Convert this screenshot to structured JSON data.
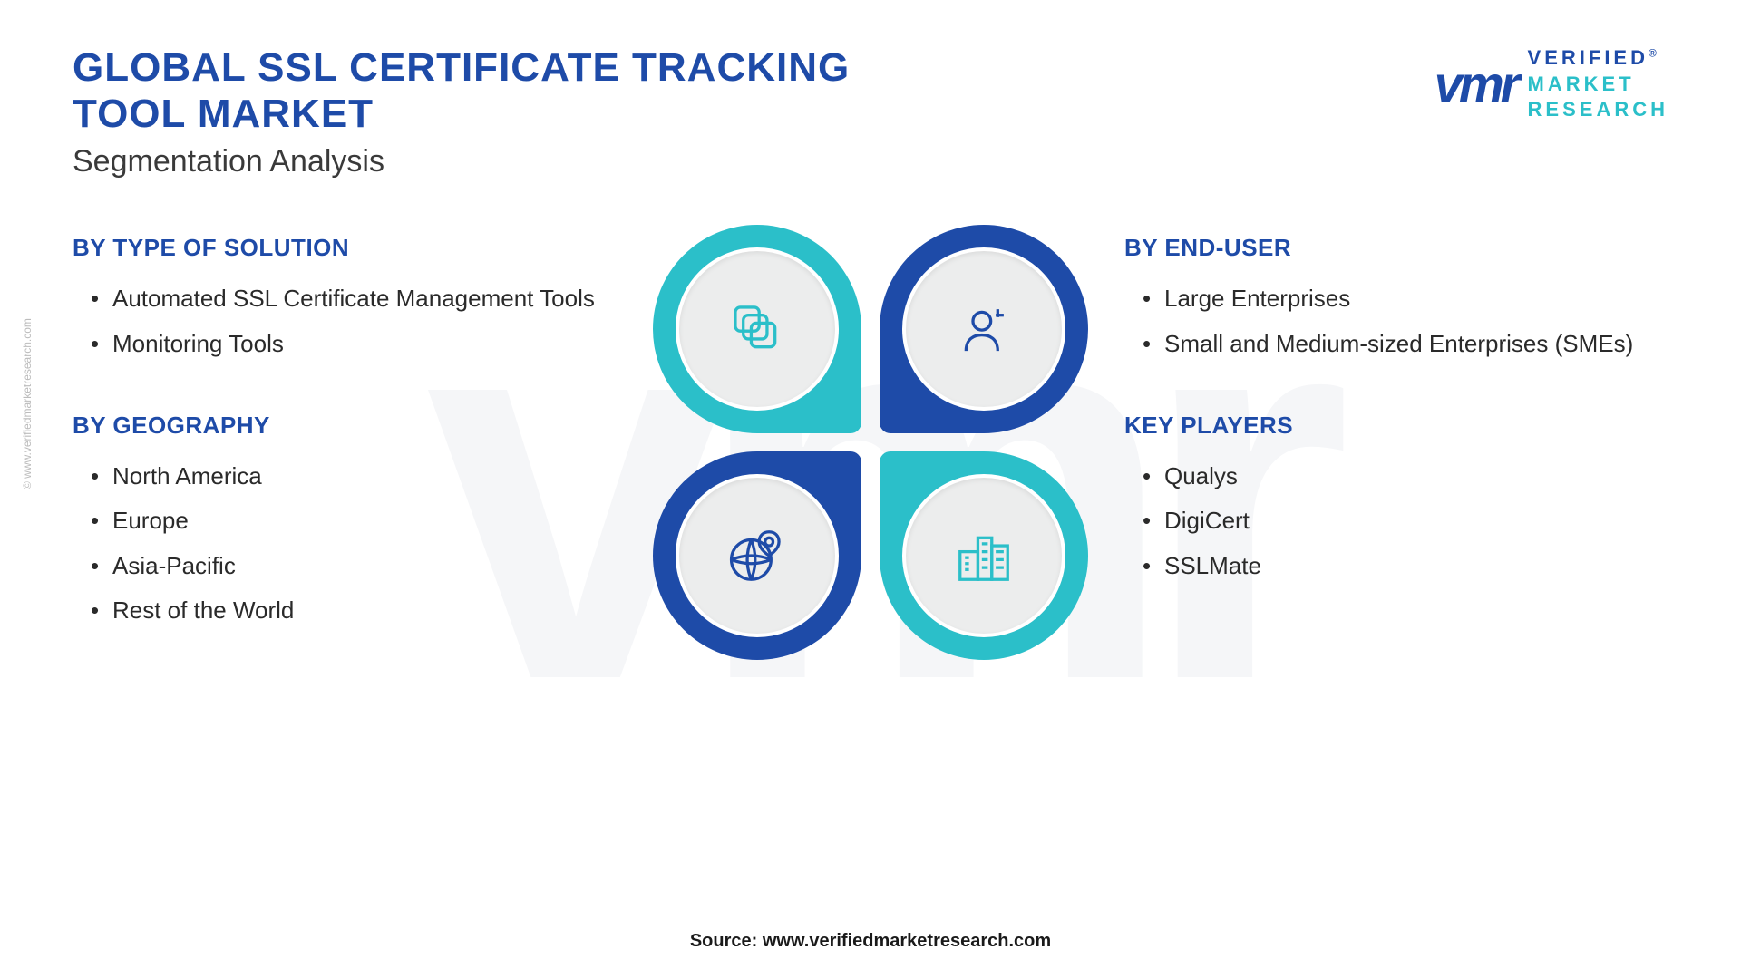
{
  "header": {
    "title": "GLOBAL SSL CERTIFICATE TRACKING TOOL MARKET",
    "subtitle": "Segmentation Analysis"
  },
  "logo": {
    "mark": "vmr",
    "line1": "VERIFIED",
    "line2": "MARKET",
    "line3": "RESEARCH",
    "registered": "®"
  },
  "segments": {
    "type_of_solution": {
      "title": "BY TYPE OF SOLUTION",
      "items": [
        "Automated SSL Certificate Management Tools",
        "Monitoring Tools"
      ]
    },
    "geography": {
      "title": "BY GEOGRAPHY",
      "items": [
        "North America",
        "Europe",
        "Asia-Pacific",
        "Rest of the World"
      ]
    },
    "end_user": {
      "title": "BY END-USER",
      "items": [
        "Large Enterprises",
        "Small and Medium-sized Enterprises (SMEs)"
      ]
    },
    "key_players": {
      "title": "KEY PLAYERS",
      "items": [
        "Qualys",
        "DigiCert",
        "SSLMate"
      ]
    }
  },
  "diagram": {
    "colors": {
      "teal": "#2bbfc9",
      "navy": "#1e4ba8",
      "inner_bg": "#eceded",
      "inner_border": "#ffffff"
    },
    "petals": {
      "tl": {
        "color": "teal",
        "icon": "stack-icon",
        "icon_color": "#2bbfc9"
      },
      "tr": {
        "color": "navy",
        "icon": "user-icon",
        "icon_color": "#1e4ba8"
      },
      "bl": {
        "color": "navy",
        "icon": "globe-pin-icon",
        "icon_color": "#1e4ba8"
      },
      "br": {
        "color": "teal",
        "icon": "buildings-icon",
        "icon_color": "#2bbfc9"
      }
    }
  },
  "footer": {
    "source": "Source: www.verifiedmarketresearch.com",
    "side_watermark": "© www.verifiedmarketresearch.com"
  },
  "styling": {
    "title_color": "#1e4ba8",
    "subtitle_color": "#3a3a3a",
    "text_color": "#2a2a2a",
    "title_fontsize": 44,
    "subtitle_fontsize": 34,
    "segment_title_fontsize": 26,
    "list_fontsize": 26,
    "background": "#ffffff"
  }
}
